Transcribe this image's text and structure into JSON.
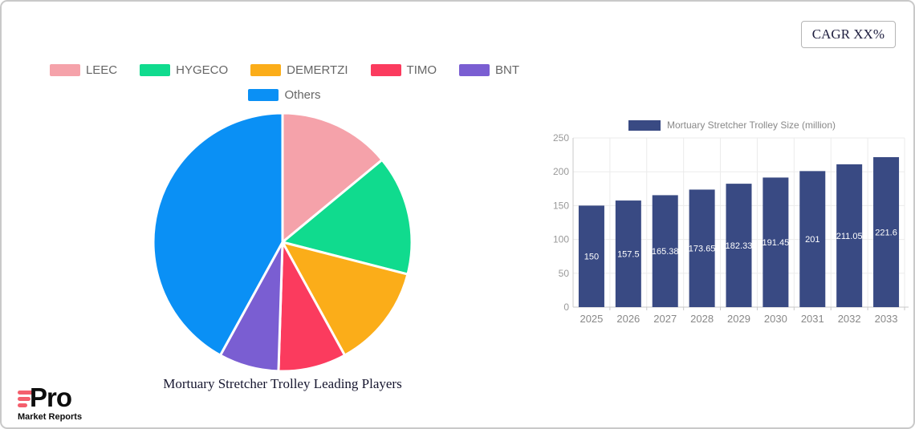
{
  "header": {
    "cagr_label": "CAGR XX%"
  },
  "logo": {
    "brand": "Pro",
    "subtitle": "Market Reports",
    "accent_color": "#f45f6d"
  },
  "chart_data": [
    {
      "type": "pie",
      "title": "Mortuary Stretcher Trolley Leading Players",
      "labels": [
        "LEEC",
        "HYGECO",
        "DEMERTZI",
        "TIMO",
        "BNT",
        "Others"
      ],
      "values": [
        14,
        15,
        13,
        8.5,
        7.5,
        42
      ],
      "colors": [
        "#f5a2aa",
        "#10db8e",
        "#fbad19",
        "#fb3b5e",
        "#7a5ed2",
        "#0a90f5"
      ],
      "legend_position": "top",
      "start_angle_deg": 0,
      "direction": "clockwise"
    },
    {
      "type": "bar",
      "legend_label": "Mortuary Stretcher Trolley Size (million)",
      "categories": [
        "2025",
        "2026",
        "2027",
        "2028",
        "2029",
        "2030",
        "2031",
        "2032",
        "2033"
      ],
      "values": [
        150,
        157.5,
        165.38,
        173.65,
        182.33,
        191.45,
        201,
        211.05,
        221.6
      ],
      "bar_color": "#394a83",
      "value_label_color": "#ffffff",
      "axis_label_color": "#999999",
      "ylim": [
        0,
        250
      ],
      "yticks": [
        0,
        50,
        100,
        150,
        200,
        250
      ],
      "grid": true,
      "legend_position": "top"
    }
  ]
}
